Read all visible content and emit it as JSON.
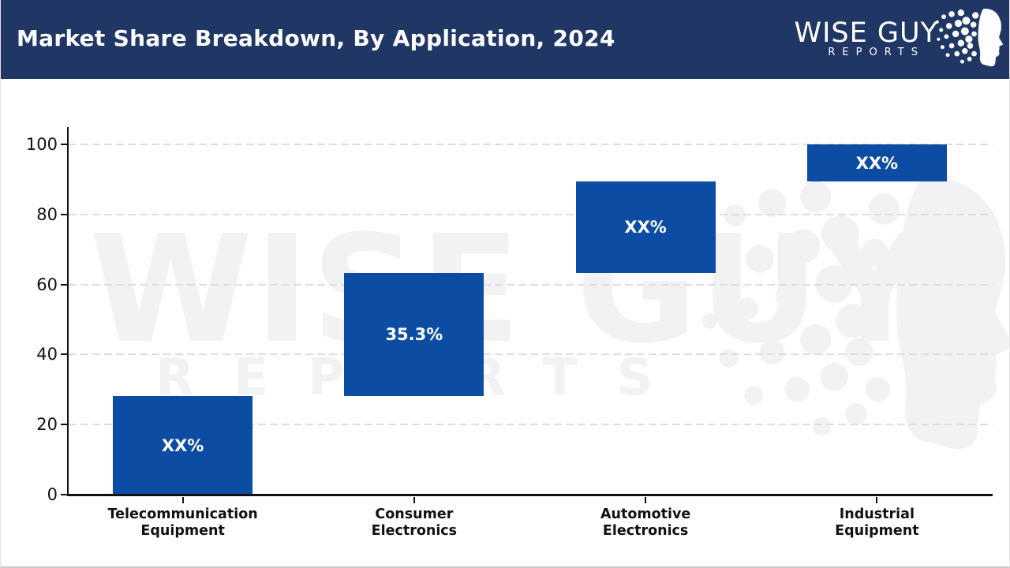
{
  "header": {
    "title": "Market Share Breakdown, By Application, 2024",
    "logo": {
      "line1": "WISE GUY",
      "line2": "REPORTS"
    }
  },
  "watermark": {
    "line1": "WISE GUY",
    "line2": "REPORTS"
  },
  "colors": {
    "header_bg": "#203766",
    "bar": "#0c4da3",
    "gridline": "#dedede",
    "axis": "#111111",
    "bar_label": "#ffffff",
    "watermark": "#f2f2f4"
  },
  "chart_data": {
    "type": "bar",
    "subtype": "waterfall",
    "title": "Market Share Breakdown, By Application, 2024",
    "categories": [
      [
        "Telecommunication",
        "Equipment"
      ],
      [
        "Consumer",
        "Electronics"
      ],
      [
        "Automotive",
        "Electronics"
      ],
      [
        "Industrial",
        "Equipment"
      ]
    ],
    "segments": [
      {
        "label": "XX%",
        "start": 0,
        "end": 28.1
      },
      {
        "label": "35.3%",
        "start": 28.1,
        "end": 63.4
      },
      {
        "label": "XX%",
        "start": 63.4,
        "end": 89.4
      },
      {
        "label": "XX%",
        "start": 89.4,
        "end": 100
      }
    ],
    "yticks": [
      0,
      20,
      40,
      60,
      80,
      100
    ],
    "ylim": [
      0,
      105
    ],
    "grid": "dashed-horizontal",
    "legend": false
  }
}
